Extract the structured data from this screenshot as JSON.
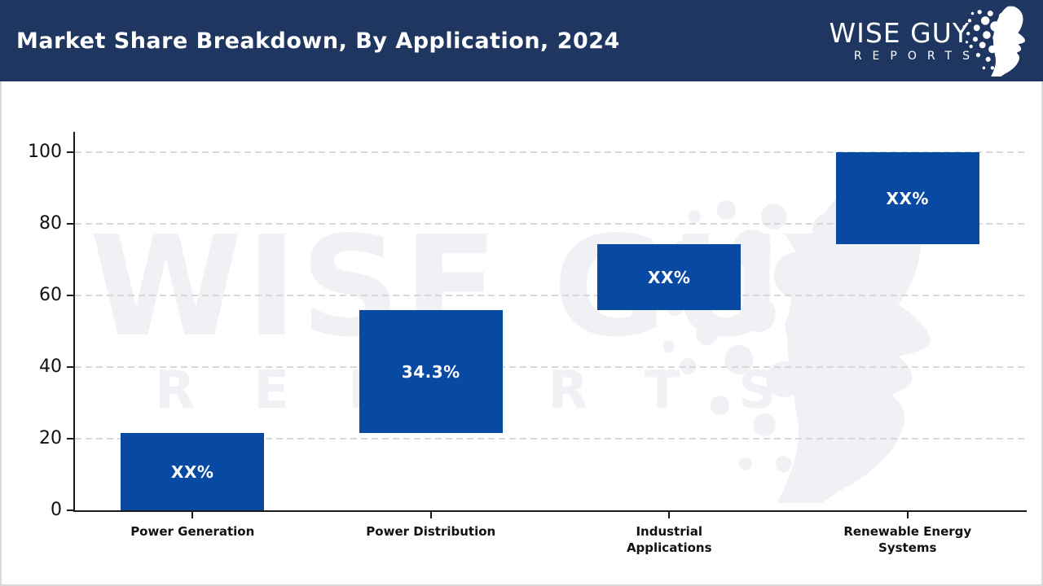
{
  "header": {
    "title": "Market Share Breakdown, By Application, 2024",
    "logo": {
      "line1": "WISE GUY",
      "line2": "REPORTS"
    }
  },
  "watermark": {
    "line1": "WISE GUY",
    "line2": "REPORTS"
  },
  "colors": {
    "header_bg": "#1f3660",
    "bar": "#084aa3",
    "grid": "#d8d8d8",
    "axis": "#1a1a1a",
    "border": "#d9d9d9",
    "watermark": "#f0f1f4"
  },
  "chart_data": {
    "type": "bar",
    "subtype": "waterfall-stacked-segments",
    "title": "Market Share Breakdown, By Application, 2024",
    "xlabel": "",
    "ylabel": "",
    "ylim": [
      0,
      100
    ],
    "yticks": [
      0,
      20,
      40,
      60,
      80,
      100
    ],
    "grid": "horizontal-dashed",
    "legend": "none",
    "categories": [
      "Power Generation",
      "Power Distribution",
      "Industrial Applications",
      "Renewable Energy Systems"
    ],
    "segments": [
      {
        "category": "Power Generation",
        "start": 0,
        "end": 21.5,
        "value_shown": "XX%",
        "label": "XX%"
      },
      {
        "category": "Power Distribution",
        "start": 21.5,
        "end": 55.8,
        "value_shown": "34.3%",
        "label": "34.3%",
        "value": 34.3
      },
      {
        "category": "Industrial Applications",
        "start": 55.8,
        "end": 74.3,
        "value_shown": "XX%",
        "label": "XX%"
      },
      {
        "category": "Renewable Energy Systems",
        "start": 74.3,
        "end": 100,
        "value_shown": "XX%",
        "label": "XX%"
      }
    ]
  }
}
